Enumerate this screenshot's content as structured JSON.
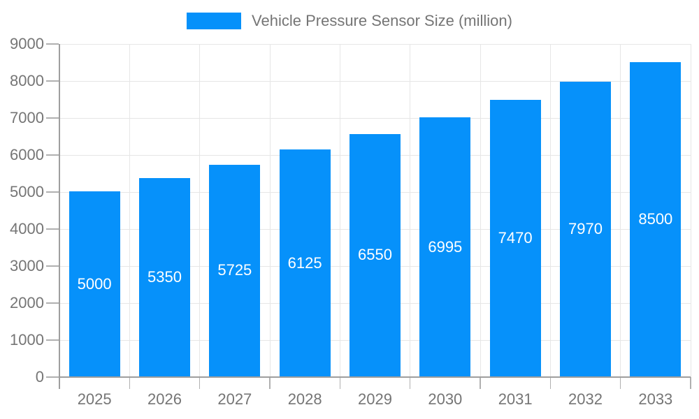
{
  "legend": {
    "label": "Vehicle Pressure Sensor Size (million)"
  },
  "chart_data": {
    "type": "bar",
    "title": "Vehicle Pressure Sensor Size (million)",
    "categories": [
      "2025",
      "2026",
      "2027",
      "2028",
      "2029",
      "2030",
      "2031",
      "2032",
      "2033"
    ],
    "values": [
      5000,
      5350,
      5725,
      6125,
      6550,
      6995,
      7470,
      7970,
      8500
    ],
    "xlabel": "",
    "ylabel": "",
    "ylim": [
      0,
      9000
    ],
    "ytick_step": 1000,
    "yticks": [
      0,
      1000,
      2000,
      3000,
      4000,
      5000,
      6000,
      7000,
      8000,
      9000
    ],
    "grid": true,
    "legend_position": "top",
    "bar_labels_inside": true,
    "colors": {
      "bar": "#0691fa",
      "bar_label": "#ffffff",
      "text": "#757575",
      "grid": "#e6e6e6",
      "axis": "#9e9e9e",
      "tick": "#b0b0b0",
      "background": "#ffffff"
    }
  }
}
